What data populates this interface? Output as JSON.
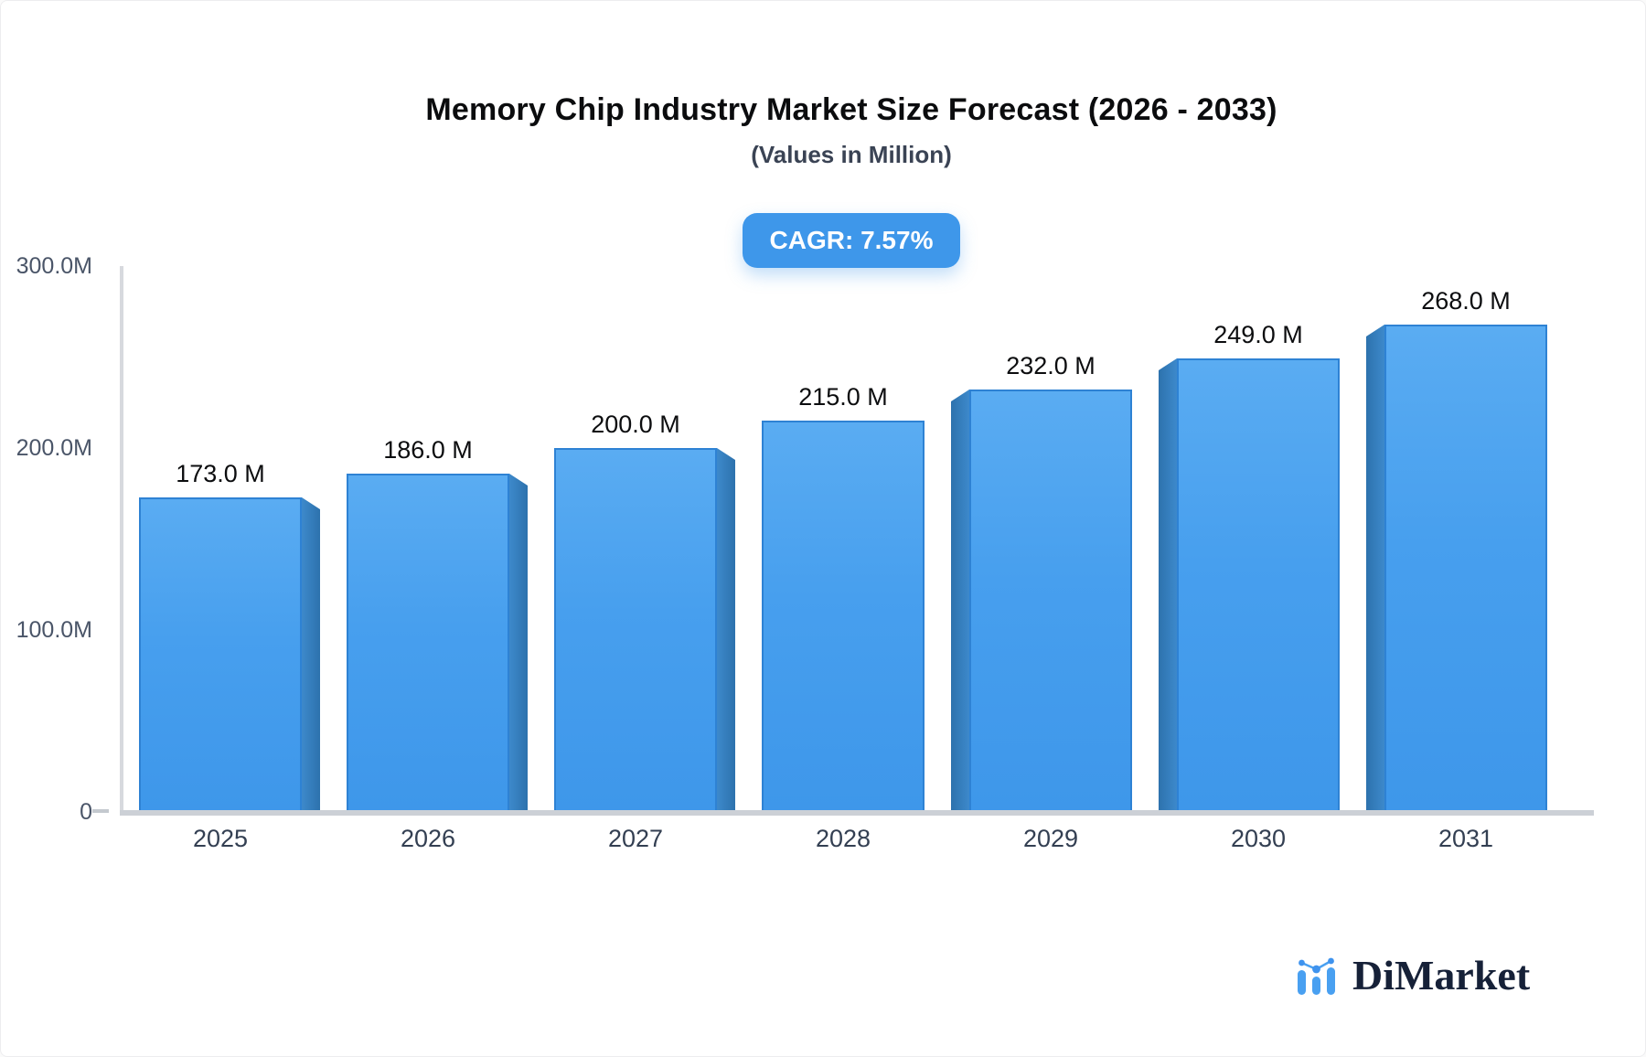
{
  "header": {
    "title": "Memory Chip Industry Market Size Forecast (2026 - 2033)",
    "subtitle": "(Values in Million)",
    "cagr_badge": "CAGR: 7.57%"
  },
  "chart_data": {
    "type": "bar",
    "title": "Memory Chip Industry Market Size Forecast (2026 - 2033)",
    "subtitle": "(Values in Million)",
    "unit": "Million",
    "categories": [
      "2025",
      "2026",
      "2027",
      "2028",
      "2029",
      "2030",
      "2031"
    ],
    "values": [
      173,
      186,
      200,
      215,
      232,
      249,
      268
    ],
    "value_labels": [
      "173.0 M",
      "186.0 M",
      "200.0 M",
      "215.0 M",
      "232.0 M",
      "249.0 M",
      "268.0 M"
    ],
    "annotation": "CAGR: 7.57%",
    "y_axis": {
      "range": [
        0,
        300
      ],
      "ticks": [
        {
          "label": "300.0M",
          "value": 300
        },
        {
          "label": "200.0M",
          "value": 200
        },
        {
          "label": "100.0M",
          "value": 100
        },
        {
          "label": "0",
          "value": 0
        }
      ]
    },
    "grid": false,
    "legend": false,
    "bar_style": "3d-extruded"
  },
  "branding": {
    "logo_text": "DiMarket"
  },
  "colors": {
    "bar_face": "#479fee",
    "bar_face_light": "#5aacf2",
    "bar_edge": "#2e82d4",
    "bar_side": "#2d72ad",
    "badge_bg": "#3e97ea",
    "badge_text": "#ffffff",
    "axis": "#ccd0d6",
    "title_text": "#0b0c0e",
    "subtitle_text": "#3a4354",
    "logo_text": "#162138",
    "logo_icon": "#49a0f1"
  }
}
